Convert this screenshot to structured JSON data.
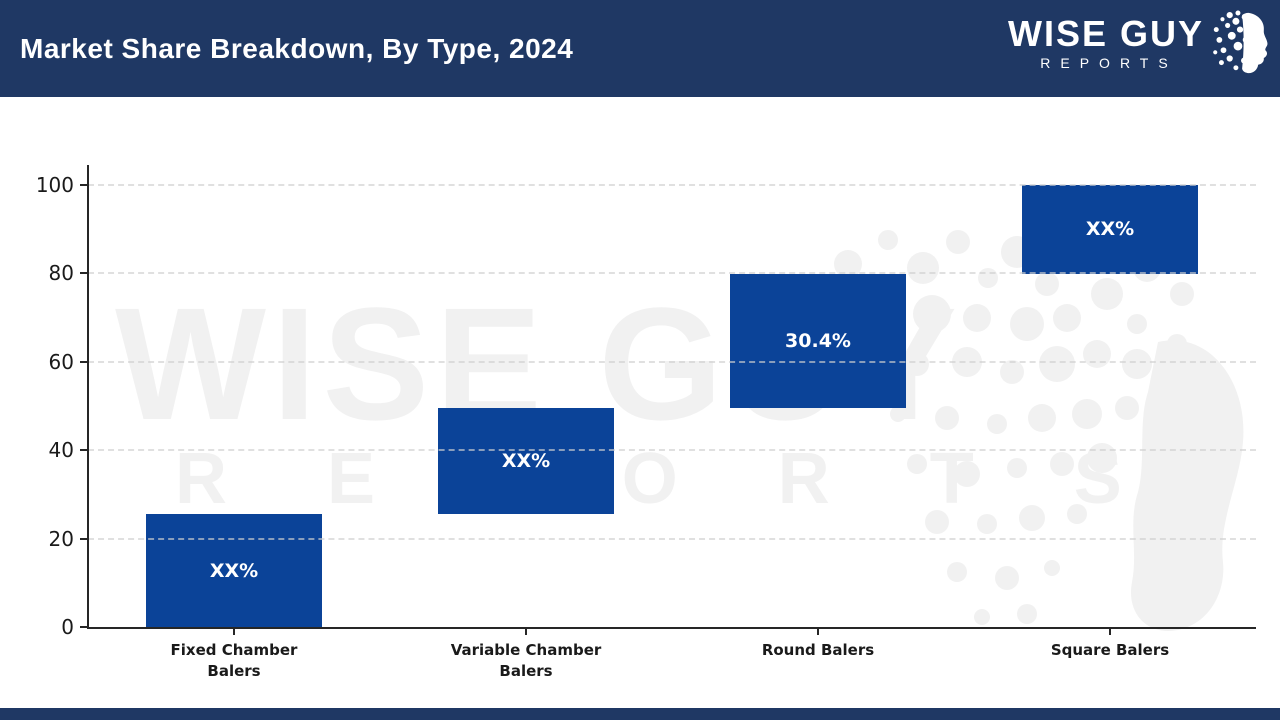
{
  "page": {
    "title": "Market Share Breakdown, By Type, 2024"
  },
  "header": {
    "title": "Market Share Breakdown, By Type, 2024",
    "bg_color": "#1f3864",
    "text_color": "#ffffff",
    "logo": {
      "wordmark": "WISE GUY",
      "subtext": "REPORTS"
    }
  },
  "watermark": {
    "line1": "WISE GUY",
    "line2": "R E P O R T S",
    "color": "#f1f1f1"
  },
  "chart_data": {
    "type": "bar",
    "subtype": "floating-segment-waterfall",
    "title": "Market Share Breakdown, By Type, 2024",
    "xlabel": "",
    "ylabel": "",
    "categories": [
      "Fixed Chamber Balers",
      "Variable Chamber Balers",
      "Round Balers",
      "Square Balers"
    ],
    "segments": [
      {
        "category": "Fixed Chamber Balers",
        "start": 0,
        "end": 25.5,
        "label": "XX%"
      },
      {
        "category": "Variable Chamber Balers",
        "start": 25.5,
        "end": 49.5,
        "label": "XX%"
      },
      {
        "category": "Round Balers",
        "start": 49.5,
        "end": 79.9,
        "label": "30.4%"
      },
      {
        "category": "Square Balers",
        "start": 79.9,
        "end": 100,
        "label": "XX%"
      }
    ],
    "y_ticks": [
      0,
      20,
      40,
      60,
      80,
      100
    ],
    "ylim": [
      0,
      105
    ],
    "grid": true,
    "gridline_style": "dashed",
    "gridline_color": "#d8d8d8",
    "axis_color": "#262626",
    "bar_color": "#0b4398",
    "bar_label_color": "#ffffff",
    "tick_label_color": "#1a1a1a",
    "legend": false
  },
  "footer": {
    "bg_color": "#1f3864"
  }
}
